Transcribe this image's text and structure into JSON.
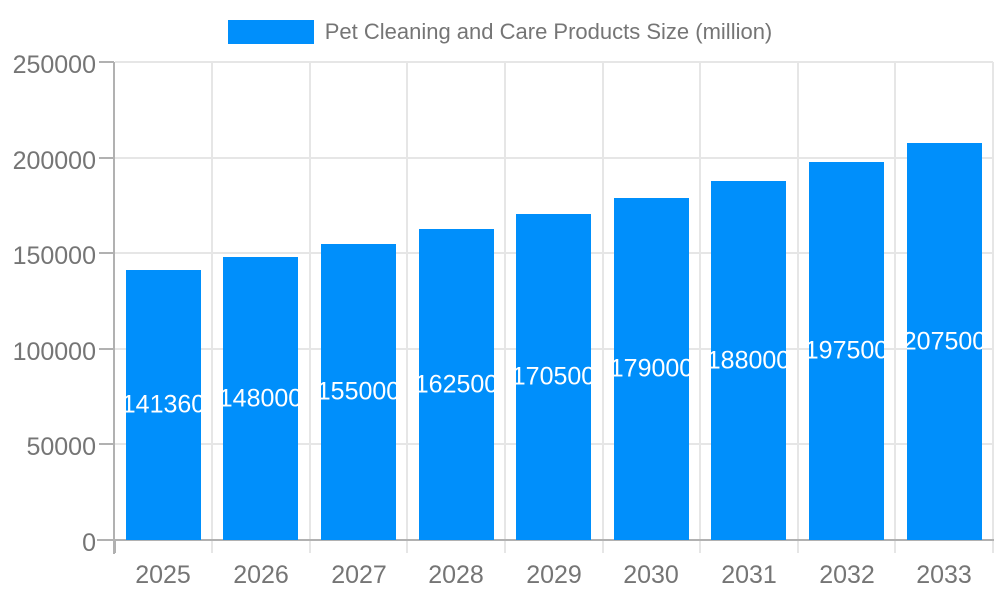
{
  "chart": {
    "legend_label": "Pet Cleaning and Care Products Size (million)"
  },
  "chart_data": {
    "type": "bar",
    "title": "Pet Cleaning and Care Products Size (million)",
    "categories": [
      "2025",
      "2026",
      "2027",
      "2028",
      "2029",
      "2030",
      "2031",
      "2032",
      "2033"
    ],
    "series": [
      {
        "name": "Pet Cleaning and Care Products Size (million)",
        "values": [
          141360,
          148000,
          155000,
          162500,
          170500,
          179000,
          188000,
          197500,
          207500
        ]
      }
    ],
    "bar_labels": [
      "141360",
      "148000",
      "155000",
      "162500",
      "170500",
      "179000",
      "188000",
      "197500",
      "207500"
    ],
    "xlabel": "",
    "ylabel": "",
    "ylim": [
      0,
      250000
    ],
    "yticks": [
      0,
      50000,
      100000,
      150000,
      200000,
      250000
    ],
    "ytick_labels": [
      "0",
      "50000",
      "100000",
      "150000",
      "200000",
      "250000"
    ],
    "grid": "on",
    "legend_position": "top",
    "colors": {
      "bar": "#008FFB",
      "bar_label": "#FFFFFF",
      "text": "#757575",
      "grid_line": "#E6E6E6",
      "axis_line": "#B1B1B1",
      "background": "#FFFFFF"
    }
  }
}
